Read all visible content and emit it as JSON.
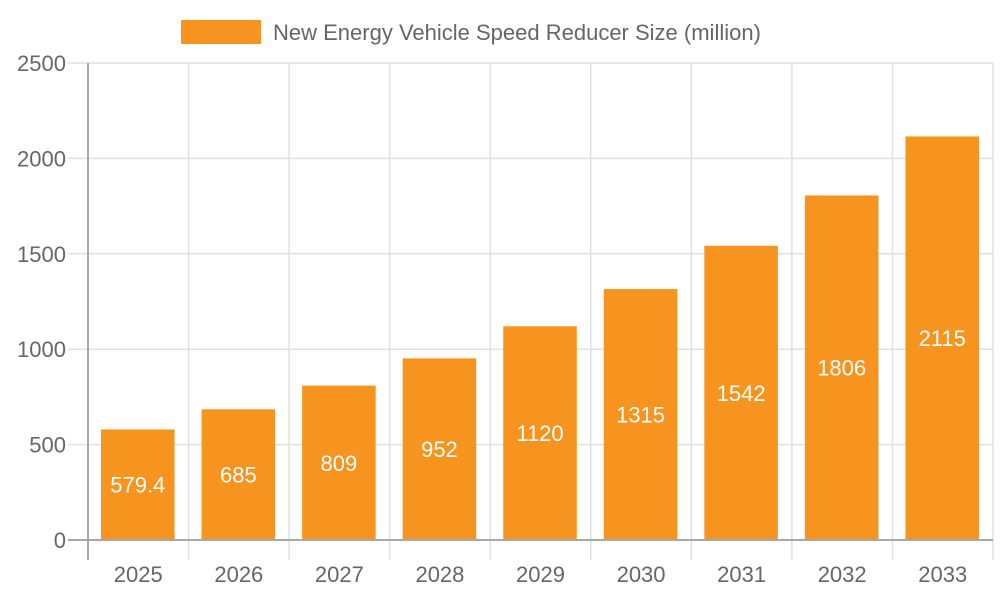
{
  "chart_data": {
    "type": "bar",
    "categories": [
      "2025",
      "2026",
      "2027",
      "2028",
      "2029",
      "2030",
      "2031",
      "2032",
      "2033"
    ],
    "series": [
      {
        "name": "New Energy Vehicle Speed Reducer Size (million)",
        "values": [
          579.4,
          685,
          809,
          952,
          1120,
          1315,
          1542,
          1806,
          2115
        ],
        "color": "#f7941f"
      }
    ],
    "ylim": [
      0,
      2500
    ],
    "yticks": [
      "0",
      "500",
      "1000",
      "1500",
      "2000",
      "2500"
    ],
    "data_labels": [
      "579.4",
      "685",
      "809",
      "952",
      "1120",
      "1315",
      "1542",
      "1806",
      "2115"
    ],
    "grid": true,
    "legend_position": "top",
    "xlabel": "",
    "ylabel": "",
    "colors": {
      "bar": "#f7941f",
      "grid": "#e0e0e0",
      "axis": "#a8a8a8",
      "text": "#666666",
      "data_label": "#ffffff"
    }
  }
}
